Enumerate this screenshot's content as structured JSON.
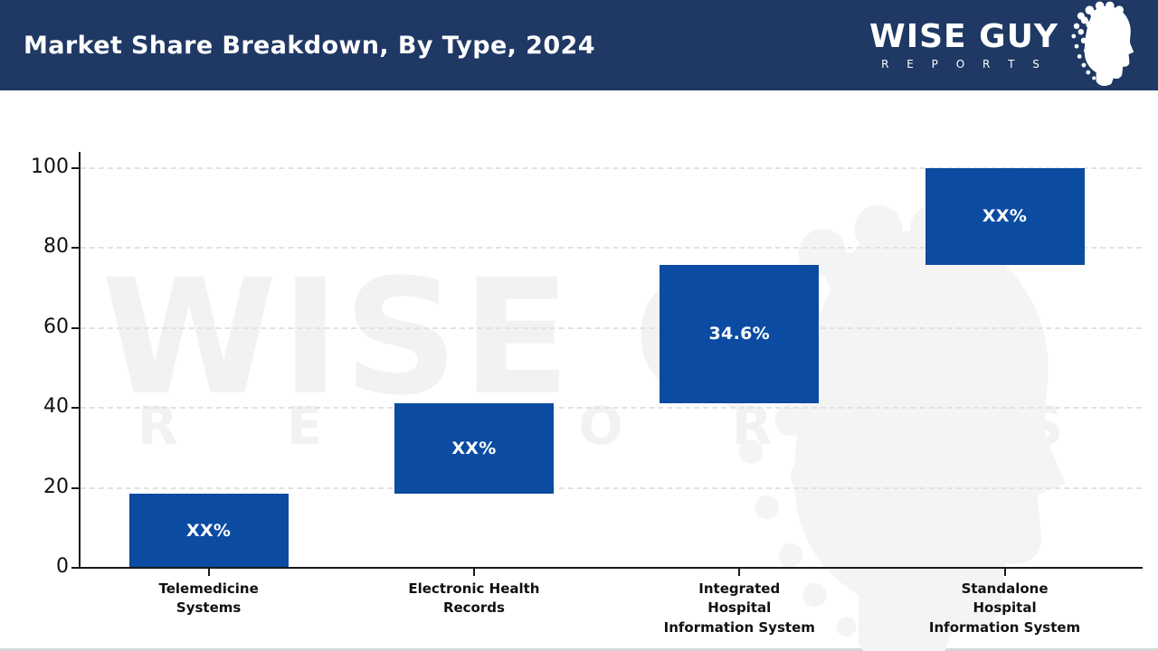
{
  "header": {
    "title": "Market Share Breakdown, By Type, 2024",
    "logo_line1": "WISE GUY",
    "logo_line2": "R E P O R T S",
    "bg_color": "#1f3864"
  },
  "watermark": {
    "line1": "WISE GUY",
    "line2": "R E P O R T S"
  },
  "chart_data": {
    "type": "bar",
    "variant": "waterfall",
    "title": "Market Share Breakdown, By Type, 2024",
    "categories": [
      "Telemedicine Systems",
      "Electronic Health Records",
      "Integrated Hospital Information System",
      "Standalone Hospital Information System"
    ],
    "category_labels": [
      "Telemedicine\nSystems",
      "Electronic Health\nRecords",
      "Integrated\nHospital\nInformation System",
      "Standalone\nHospital\nInformation System"
    ],
    "segments": [
      {
        "category": "Telemedicine Systems",
        "start": 0,
        "end": 18.5,
        "value_label": "XX%"
      },
      {
        "category": "Electronic Health Records",
        "start": 18.5,
        "end": 41.2,
        "value_label": "XX%"
      },
      {
        "category": "Integrated Hospital Information System",
        "start": 41.2,
        "end": 75.8,
        "value_label": "34.6%"
      },
      {
        "category": "Standalone Hospital Information System",
        "start": 75.8,
        "end": 100,
        "value_label": "XX%"
      }
    ],
    "yticks": [
      0,
      20,
      40,
      60,
      80,
      100
    ],
    "ylim": [
      0,
      105
    ],
    "xlabel": "",
    "ylabel": "",
    "bar_color": "#0b4ba1",
    "grid": "horizontal-dashed",
    "legend": "none"
  }
}
